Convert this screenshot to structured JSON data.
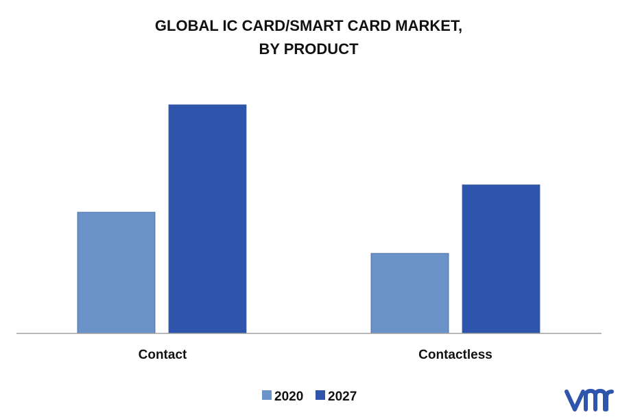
{
  "chart_data": {
    "type": "bar",
    "title_lines": [
      "GLOBAL IC CARD/SMART CARD MARKET,",
      "BY PRODUCT"
    ],
    "categories": [
      "Contact",
      "Contactless"
    ],
    "series": [
      {
        "name": "2020",
        "values": [
          53,
          35
        ],
        "color": "#6a93c9"
      },
      {
        "name": "2027",
        "values": [
          100,
          65
        ],
        "color": "#2e54ab"
      }
    ],
    "ylim": [
      0,
      100
    ],
    "grid": false,
    "legend_position": "bottom",
    "axis_color": "#a0a0a0",
    "logo": {
      "text": "vmr",
      "color": "#2e54ab"
    }
  }
}
